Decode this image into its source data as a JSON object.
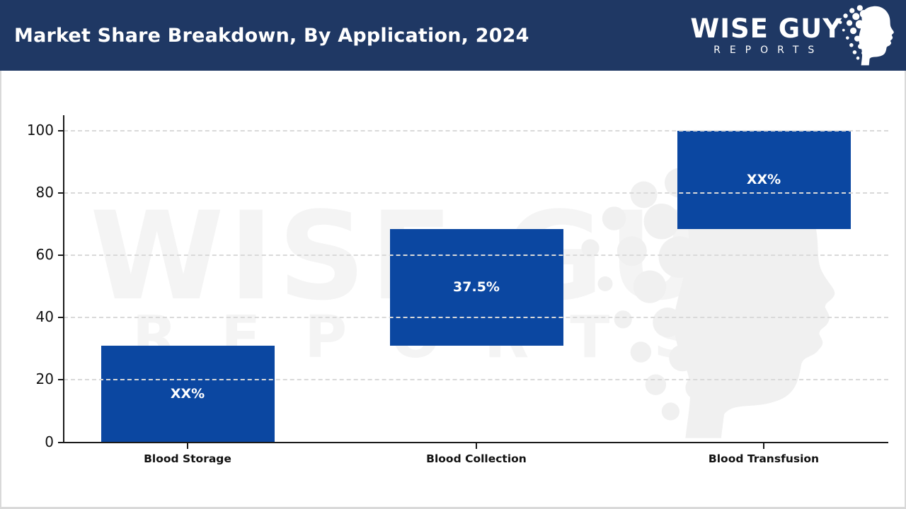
{
  "header": {
    "title": "Market Share Breakdown, By Application, 2024",
    "logo": {
      "line1": "WISE GUY",
      "line2": "REPORTS"
    }
  },
  "watermark": {
    "line1": "WISE GUY",
    "line2": "REPORTS"
  },
  "colors": {
    "header_bg": "#1f3864",
    "bar_fill": "#0b47a1",
    "bar_label": "#ffffff",
    "gridline": "#d9d9d9",
    "axis": "#1a1a1a"
  },
  "chart_data": {
    "type": "bar",
    "subtype": "floating-segment-waterfall",
    "title": "Market Share Breakdown, By Application, 2024",
    "categories": [
      "Blood Storage",
      "Blood Collection",
      "Blood Transfusion"
    ],
    "segments": [
      {
        "category": "Blood Storage",
        "start": 0,
        "end": 31,
        "label": "XX%"
      },
      {
        "category": "Blood Collection",
        "start": 31,
        "end": 68.5,
        "label": "37.5%"
      },
      {
        "category": "Blood Transfusion",
        "start": 68.5,
        "end": 100,
        "label": "XX%"
      }
    ],
    "xlabel": "",
    "ylabel": "",
    "ylim": [
      0,
      105
    ],
    "yticks": [
      0,
      20,
      40,
      60,
      80,
      100
    ],
    "grid": "horizontal-dashed, drawn above bars",
    "legend": "none"
  }
}
